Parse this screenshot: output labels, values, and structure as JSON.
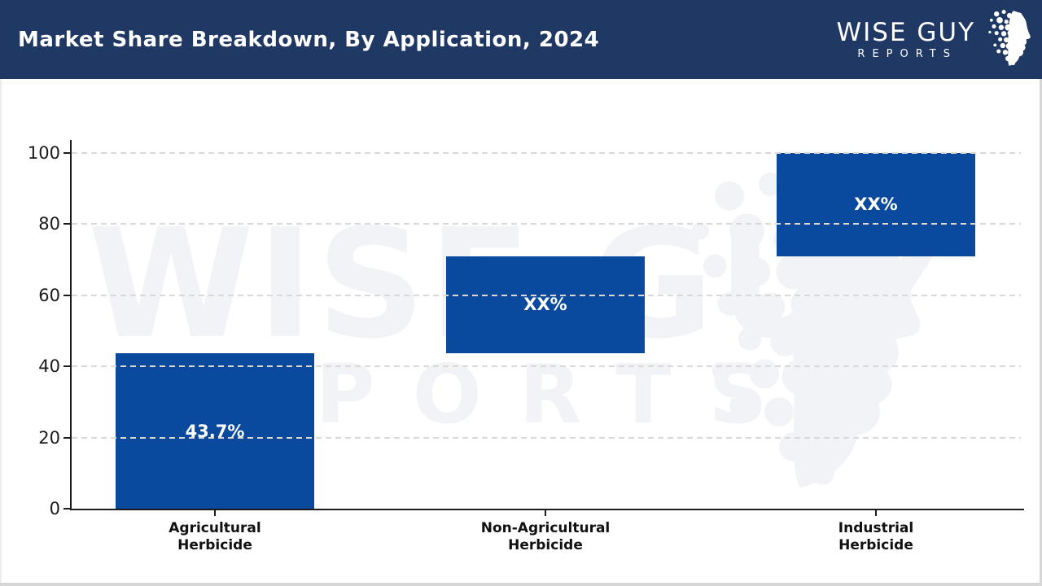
{
  "header": {
    "title": "Market Share Breakdown, By Application, 2024",
    "logo": {
      "brand": "WISE GUY",
      "sub": "REPORTS"
    }
  },
  "watermark": {
    "brand": "WISE GUY",
    "sub": "REPORTS"
  },
  "colors": {
    "header_bg": "#1f3864",
    "bar": "#0a4a9e",
    "bar_label": "#ffffff",
    "grid": "#d9d9d9",
    "axis": "#1c1c1c",
    "watermark": "#f2f3f6",
    "page_border": "#d6d6d6"
  },
  "chart_data": {
    "type": "bar",
    "subtype": "floating-waterfall",
    "title": "Market Share Breakdown, By Application, 2024",
    "categories": [
      [
        "Agricultural",
        "Herbicide"
      ],
      [
        "Non-Agricultural",
        "Herbicide"
      ],
      [
        "Industrial",
        "Herbicide"
      ]
    ],
    "series": [
      {
        "name": "Market share (%)",
        "segments": [
          {
            "category": "Agricultural Herbicide",
            "start": 0,
            "end": 43.7,
            "label": "43.7%"
          },
          {
            "category": "Non-Agricultural Herbicide",
            "start": 43.7,
            "end": 71,
            "label": "XX%"
          },
          {
            "category": "Industrial Herbicide",
            "start": 71,
            "end": 100,
            "label": "XX%"
          }
        ]
      }
    ],
    "ylim": [
      0,
      104
    ],
    "yticks": [
      0,
      20,
      40,
      60,
      80,
      100
    ],
    "xlabel": "",
    "ylabel": "",
    "legend": "none",
    "grid": "horizontal dashed gridlines drawn above bars"
  }
}
